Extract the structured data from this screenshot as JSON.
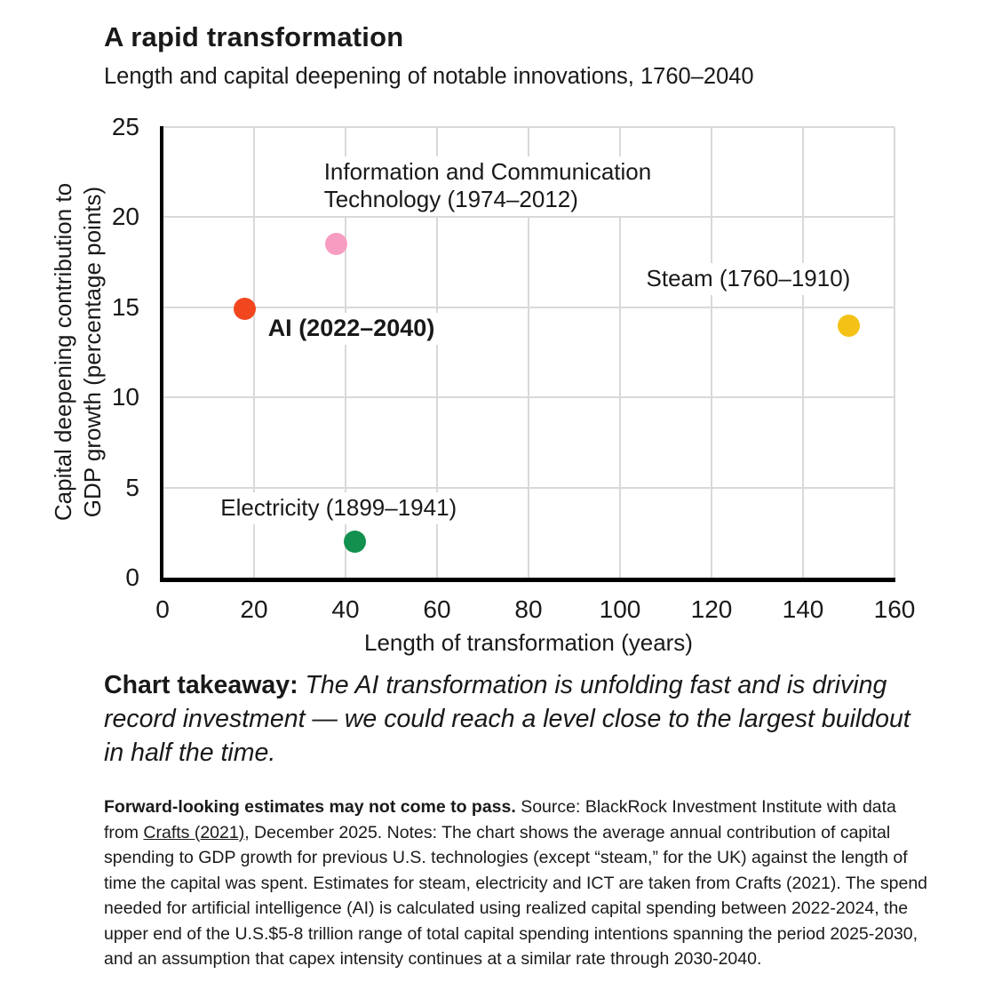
{
  "title": "A rapid transformation",
  "subtitle": "Length and capital deepening of notable innovations, 1760–2040",
  "chart_data": {
    "type": "scatter",
    "title": "A rapid transformation",
    "subtitle": "Length and capital deepening of notable innovations, 1760–2040",
    "xlabel": "Length of transformation (years)",
    "ylabel": "Capital deepening contribution to GDP growth (percentage points)",
    "ylabel_lines": [
      "Capital deepening contribution to",
      "GDP growth (percentage points)"
    ],
    "xlim": [
      0,
      160
    ],
    "ylim": [
      0,
      25
    ],
    "x_ticks": [
      0,
      20,
      40,
      60,
      80,
      100,
      120,
      140,
      160
    ],
    "y_ticks": [
      0,
      5,
      10,
      15,
      20,
      25
    ],
    "grid": true,
    "grid_color": "#D9D9D9",
    "axis_color": "#000000",
    "points": [
      {
        "name": "ICT",
        "label_lines": [
          "Information and Communication",
          "Technology (1974–2012)"
        ],
        "x": 38,
        "y": 18.5,
        "color": "#F79DC2",
        "bold": false
      },
      {
        "name": "AI",
        "label_lines": [
          "AI (2022–2040)"
        ],
        "x": 18,
        "y": 14.9,
        "color": "#F2461F",
        "bold": true
      },
      {
        "name": "Steam",
        "label_lines": [
          "Steam (1760–1910)"
        ],
        "x": 150,
        "y": 14,
        "color": "#F4C216",
        "bold": false
      },
      {
        "name": "Electricity",
        "label_lines": [
          "Electricity (1899–1941)"
        ],
        "x": 42,
        "y": 2,
        "color": "#12914E",
        "bold": false
      }
    ]
  },
  "takeaway": {
    "label": "Chart takeaway:",
    "text": "The AI transformation is unfolding fast and is driving record investment — we could reach a level close to the largest buildout in half the time."
  },
  "footnote": {
    "bold": "Forward-looking estimates may not come to pass.",
    "pre_link": " Source: BlackRock Investment Institute with data from ",
    "link": "Crafts (2021),",
    "post_link": " December 2025. Notes: The chart shows the average annual contribution of capital spending to GDP growth for previous U.S. technologies (except “steam,” for the UK) against the length of time the capital was spent. Estimates for steam, electricity and ICT are taken from Crafts (2021). The spend needed for artificial intelligence (AI) is calculated using realized capital spending between 2022-2024, the upper end of the U.S.$5-8 trillion range of total capital spending intentions spanning the period 2025-2030, and an assumption that capex intensity continues at a similar rate through 2030-2040."
  }
}
